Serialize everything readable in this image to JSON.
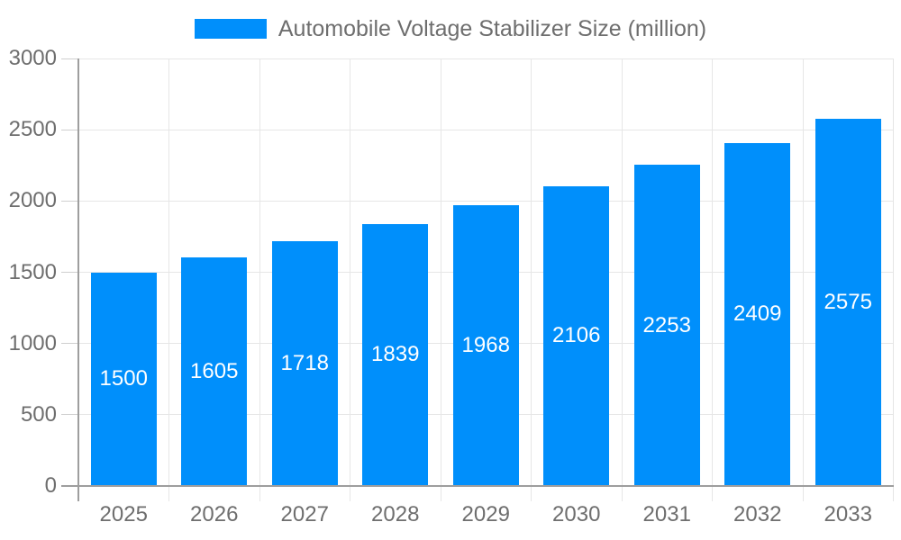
{
  "legend": {
    "label": "Automobile Voltage Stabilizer Size (million)"
  },
  "colors": {
    "bar": "#008ffb",
    "value_label_text": "#ffffff",
    "axis_text": "#6e6e6e",
    "grid_line": "#e6e6e6",
    "tick_line": "#cfcfcf",
    "axis_line": "#9e9e9e",
    "background": "#ffffff"
  },
  "chart_data": {
    "type": "bar",
    "title": "Automobile Voltage Stabilizer Size (million)",
    "categories": [
      "2025",
      "2026",
      "2027",
      "2028",
      "2029",
      "2030",
      "2031",
      "2032",
      "2033"
    ],
    "series": [
      {
        "name": "Automobile Voltage Stabilizer Size (million)",
        "values": [
          1500,
          1605,
          1718,
          1839,
          1968,
          2106,
          2253,
          2409,
          2575
        ]
      }
    ],
    "xlabel": "",
    "ylabel": "",
    "ylim": [
      0,
      3000
    ],
    "ytick_step": 500,
    "yticks": [
      0,
      500,
      1000,
      1500,
      2000,
      2500,
      3000
    ],
    "grid": "horizontal-and-vertical",
    "legend_position": "top-center",
    "value_labels": "inside-middle-white"
  }
}
